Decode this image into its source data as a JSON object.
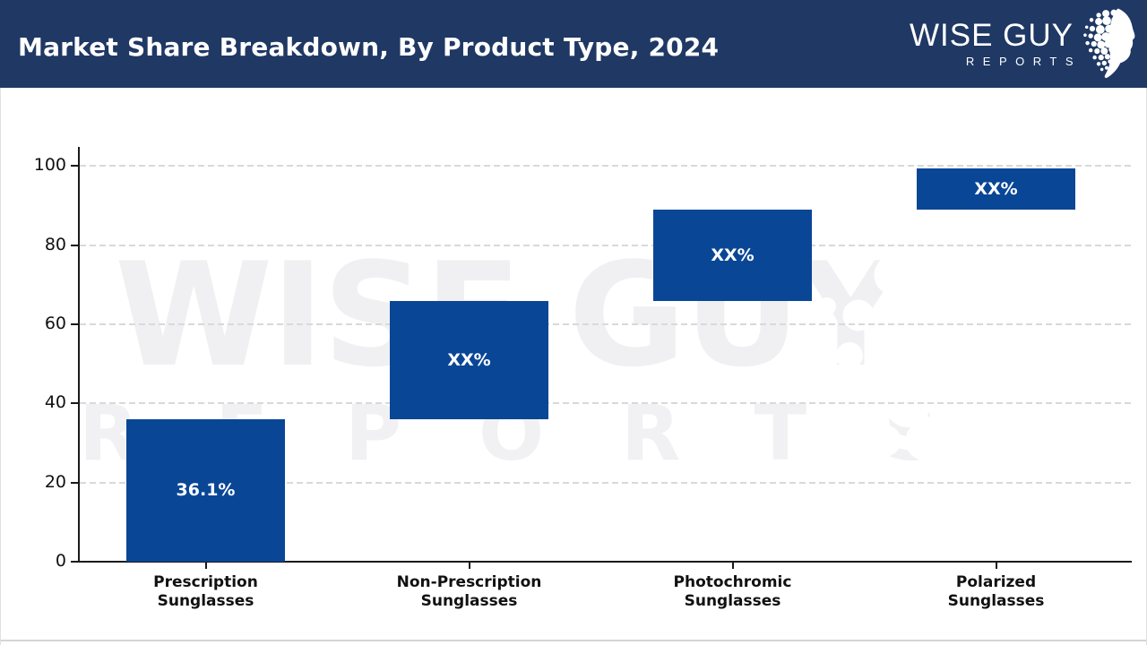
{
  "header": {
    "title": "Market Share Breakdown, By Product Type, 2024",
    "logo": {
      "line1": "WISE GUY",
      "line2": "REPORTS"
    }
  },
  "watermark": {
    "line1": "WISE GUY",
    "line2": "REPORTS"
  },
  "chart_data": {
    "type": "bar",
    "subtype": "waterfall",
    "title": "Market Share Breakdown, By Product Type, 2024",
    "categories": [
      "Prescription Sunglasses",
      "Non-Prescription Sunglasses",
      "Photochromic Sunglasses",
      "Polarized Sunglasses"
    ],
    "segments": [
      {
        "start": 0,
        "end": 36.1,
        "label": "36.1%"
      },
      {
        "start": 36.1,
        "end": 66,
        "label": "XX%"
      },
      {
        "start": 66,
        "end": 89,
        "label": "XX%"
      },
      {
        "start": 89,
        "end": 99.5,
        "label": "XX%"
      }
    ],
    "y_ticks": [
      0,
      20,
      40,
      60,
      80,
      100
    ],
    "ylim": [
      0,
      104.8
    ],
    "xlabel": "",
    "ylabel": "",
    "grid": "horizontal-dashed",
    "legend": "none",
    "colors": {
      "bar": "#0a4696",
      "bar_label": "#ffffff",
      "grid": "#d9d9d9",
      "axis": "#1a1a1a",
      "header_bg": "#1f3864",
      "header_text": "#ffffff",
      "watermark": "#f0f0f2"
    }
  }
}
